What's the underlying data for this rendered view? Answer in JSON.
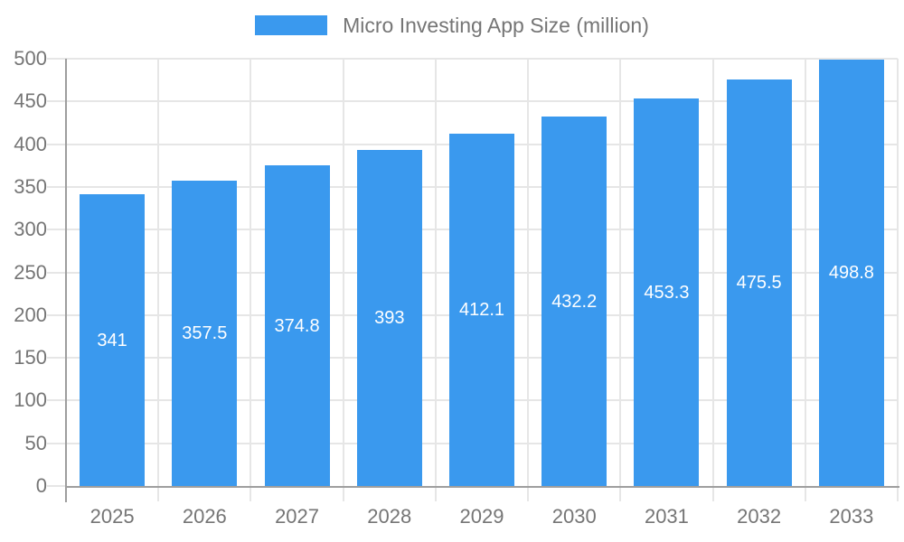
{
  "chart_data": {
    "type": "bar",
    "title": "Micro Investing App Size (million)",
    "categories": [
      "2025",
      "2026",
      "2027",
      "2028",
      "2029",
      "2030",
      "2031",
      "2032",
      "2033"
    ],
    "values": [
      341,
      357.5,
      374.8,
      393,
      412.1,
      432.2,
      453.3,
      475.5,
      498.8
    ],
    "value_labels": [
      "341",
      "357.5",
      "374.8",
      "393",
      "412.1",
      "432.2",
      "453.3",
      "475.5",
      "498.8"
    ],
    "xlabel": "",
    "ylabel": "",
    "ylim": [
      0,
      500
    ],
    "ytick_step": 50,
    "grid": true,
    "legend_position": "top-center",
    "bar_color": "#3a99ee",
    "bar_label_color": "#ffffff",
    "axis_color": "#9e9e9e",
    "grid_color": "#e6e6e6",
    "tick_text_color": "#757575",
    "legend_text_color": "#757575"
  }
}
